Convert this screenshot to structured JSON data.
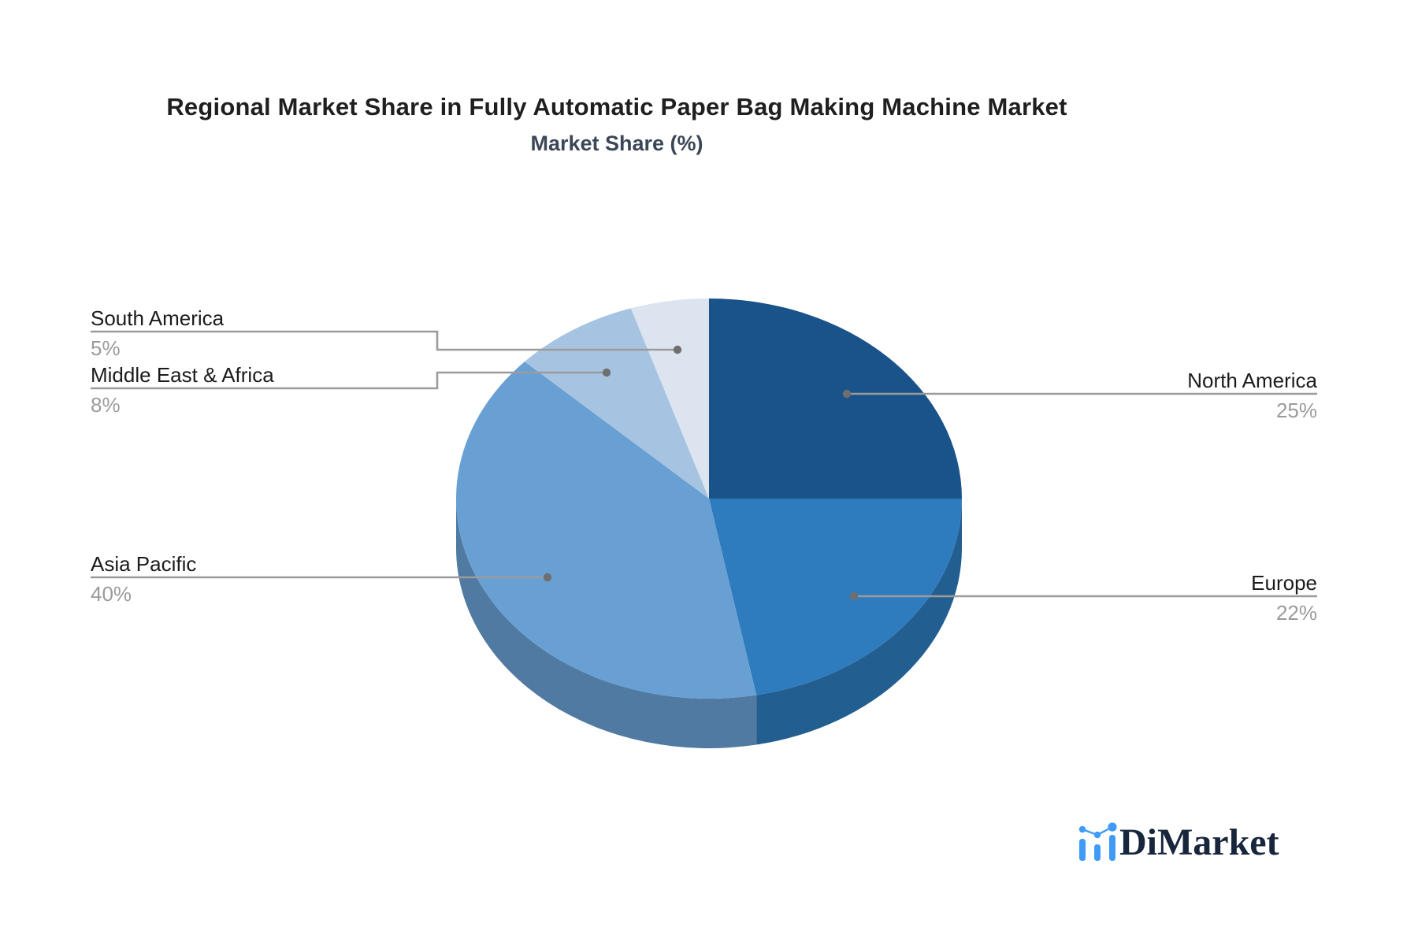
{
  "header": {
    "title": "Regional Market Share in Fully Automatic Paper Bag Making Machine Market",
    "subtitle": "Market Share (%)"
  },
  "chart_data": {
    "type": "pie",
    "title": "Regional Market Share in Fully Automatic Paper Bag Making Machine Market",
    "subtitle": "Market Share (%)",
    "unit": "%",
    "categories": [
      "North America",
      "Europe",
      "Asia Pacific",
      "Middle East & Africa",
      "South America"
    ],
    "values": [
      25,
      22,
      40,
      8,
      5
    ],
    "display_values": [
      "25%",
      "22%",
      "40%",
      "8%",
      "5%"
    ],
    "colors": [
      "#1A5389",
      "#2E7CBE",
      "#69A0D4",
      "#A6C4E1",
      "#DCE4EF"
    ],
    "direction": "clockwise",
    "start_angle_deg": 0,
    "effect_3d": true,
    "legend_position": "callout-labels",
    "leader_line_color": "#9B9B9B",
    "leader_dot_color": "#6F6F6F"
  },
  "branding": {
    "logo_text": "DiMarket",
    "logo_text_color": "#17263C",
    "logo_icon_color": "#3F9BF7"
  }
}
